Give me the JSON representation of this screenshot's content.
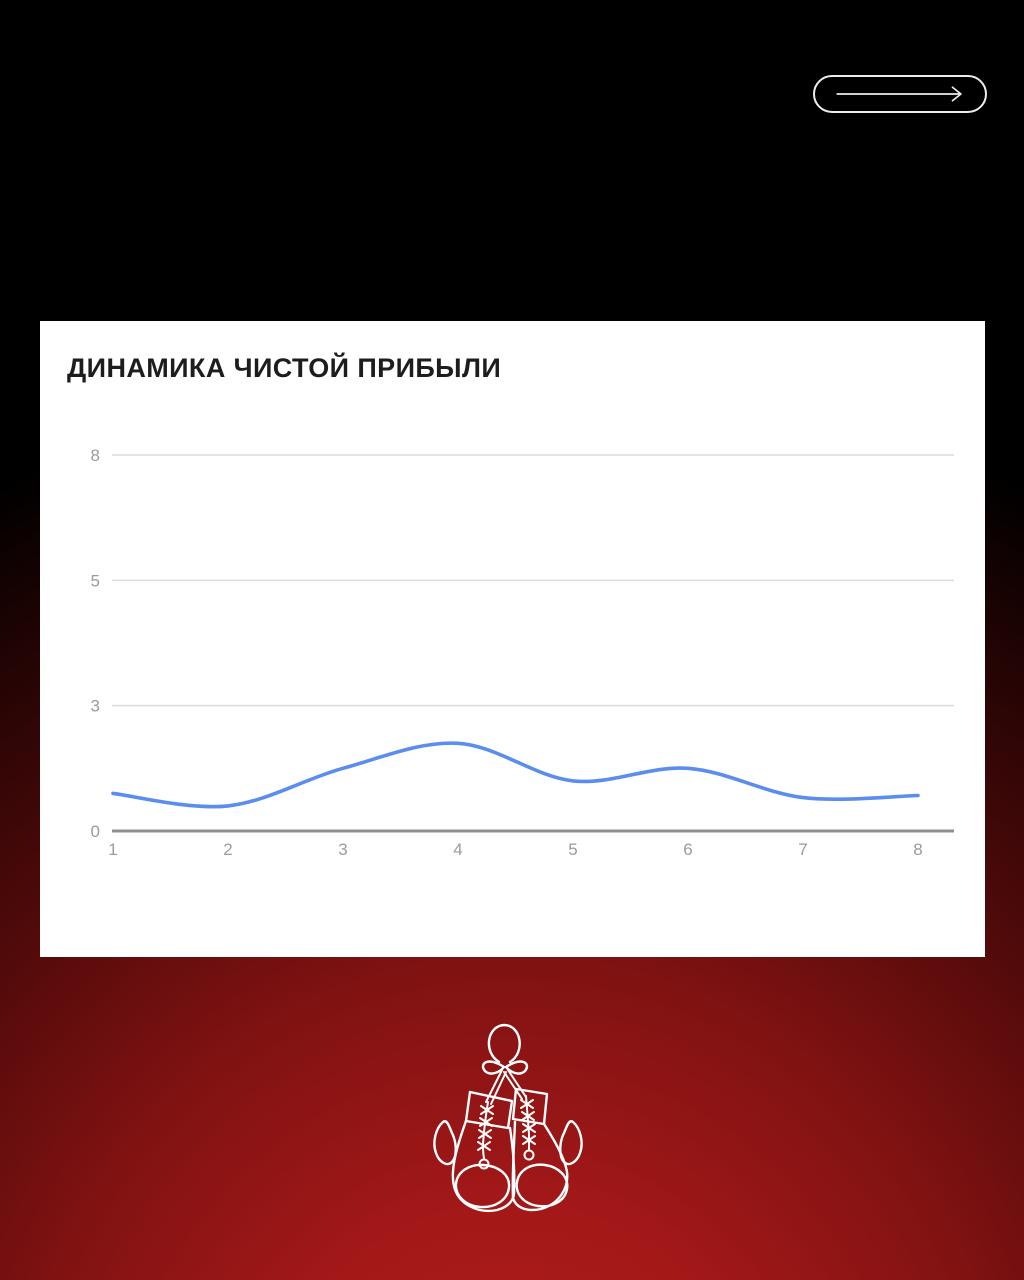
{
  "page": {
    "background": {
      "top_color": "#000000",
      "glow_color": "#b41f1f"
    }
  },
  "header": {
    "next_button": {
      "icon": "arrow-right",
      "shape": "pill-outline",
      "color": "#ededed"
    }
  },
  "card": {
    "title": "ДИНАМИКА ЧИСТОЙ ПРИБЫЛИ",
    "background": "#ffffff"
  },
  "chart_data": {
    "type": "line",
    "title": "ДИНАМИКА ЧИСТОЙ ПРИБЫЛИ",
    "x": [
      1,
      2,
      3,
      4,
      5,
      6,
      7,
      8
    ],
    "x_tick_labels": [
      "1",
      "2",
      "3",
      "4",
      "5",
      "6",
      "7",
      "8"
    ],
    "y_ticks": [
      0,
      3,
      5,
      8
    ],
    "y_tick_labels": [
      "0",
      "3",
      "5",
      "8"
    ],
    "series": [
      {
        "color": "#5b8def",
        "values": [
          0.9,
          0.6,
          1.5,
          2.1,
          1.2,
          1.5,
          0.8,
          0.85
        ]
      }
    ],
    "ylim": [
      0,
      8
    ],
    "grid": true,
    "legend": "none",
    "line_style": "smooth",
    "axis_color": "#8f8f8f",
    "grid_color": "#dcdcdc",
    "tick_label_color": "#9b9b9b"
  },
  "footer": {
    "illustration": "boxing-gloves"
  }
}
